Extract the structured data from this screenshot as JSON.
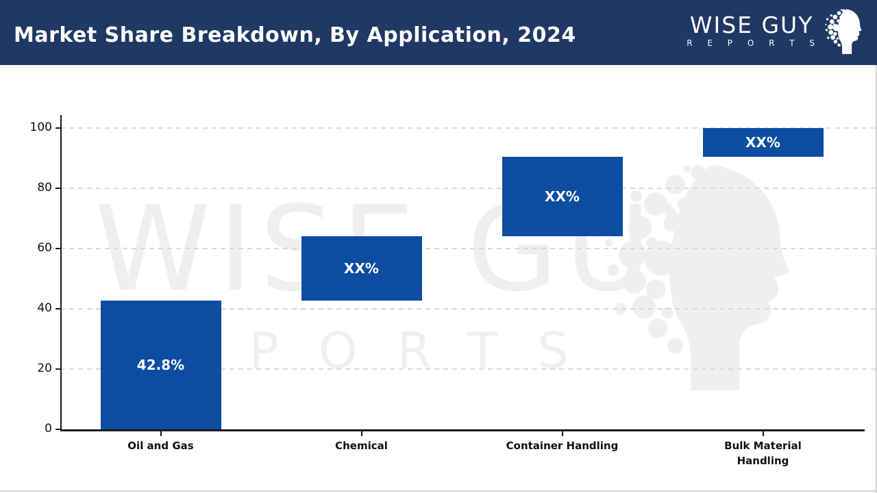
{
  "header": {
    "title": "Market Share Breakdown, By Application, 2024",
    "logo": {
      "line1": "WISE GUY",
      "line2": "R E P O R T S"
    }
  },
  "watermark": {
    "line1": "WISE GUY",
    "line2": "REPORTS"
  },
  "colors": {
    "header_bg": "#1f3864",
    "bar": "#0d4da1",
    "bar_label": "#ffffff",
    "grid": "#d9d9d9",
    "axis": "#1a1a1a",
    "watermark": "#efefef"
  },
  "chart_data": {
    "type": "bar",
    "subtype": "waterfall",
    "title": "Market Share Breakdown, By Application, 2024",
    "categories": [
      "Oil and Gas",
      "Chemical",
      "Container Handling",
      "Bulk Material Handling"
    ],
    "xlabels_display": [
      "Oil and Gas",
      "Chemical",
      "Container Handling",
      "Bulk Material\nHandling"
    ],
    "segments": [
      {
        "category": "Oil and Gas",
        "start": 0,
        "end": 42.8,
        "label": "42.8%"
      },
      {
        "category": "Chemical",
        "start": 42.8,
        "end": 64.2,
        "label": "XX%"
      },
      {
        "category": "Container Handling",
        "start": 64.2,
        "end": 90.5,
        "label": "XX%"
      },
      {
        "category": "Bulk Material Handling",
        "start": 90.5,
        "end": 100,
        "label": "XX%"
      }
    ],
    "ylim": [
      0,
      100
    ],
    "yticks": [
      0,
      20,
      40,
      60,
      80,
      100
    ],
    "grid": true,
    "legend": false,
    "xlabel": "",
    "ylabel": ""
  }
}
